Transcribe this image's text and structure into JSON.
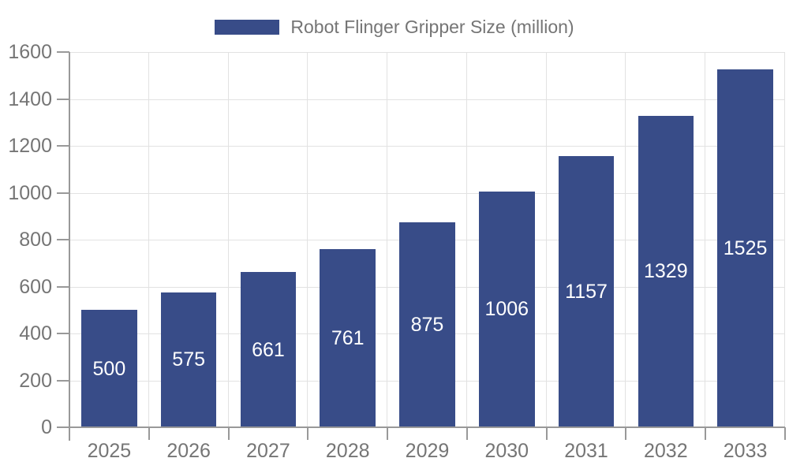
{
  "colors": {
    "bar": "#384C88",
    "bar_label": "#ffffff",
    "axis_label": "#757575",
    "axis_line": "#999999",
    "grid": "#e2e2e2",
    "background": "#ffffff"
  },
  "legend": {
    "label": "Robot Flinger Gripper Size (million)",
    "position": "top-center"
  },
  "chart_data": {
    "type": "bar",
    "title": "Robot Flinger Gripper Size (million)",
    "series_name": "Robot Flinger Gripper Size (million)",
    "categories": [
      "2025",
      "2026",
      "2027",
      "2028",
      "2029",
      "2030",
      "2031",
      "2032",
      "2033"
    ],
    "values": [
      500,
      575,
      661,
      761,
      875,
      1006,
      1157,
      1329,
      1525
    ],
    "xlabel": "",
    "ylabel": "",
    "ylim": [
      0,
      1600
    ],
    "y_ticks": [
      0,
      200,
      400,
      600,
      800,
      1000,
      1200,
      1400,
      1600
    ],
    "grid": true,
    "legend_position": "top-center",
    "value_labels": "inside-center"
  }
}
